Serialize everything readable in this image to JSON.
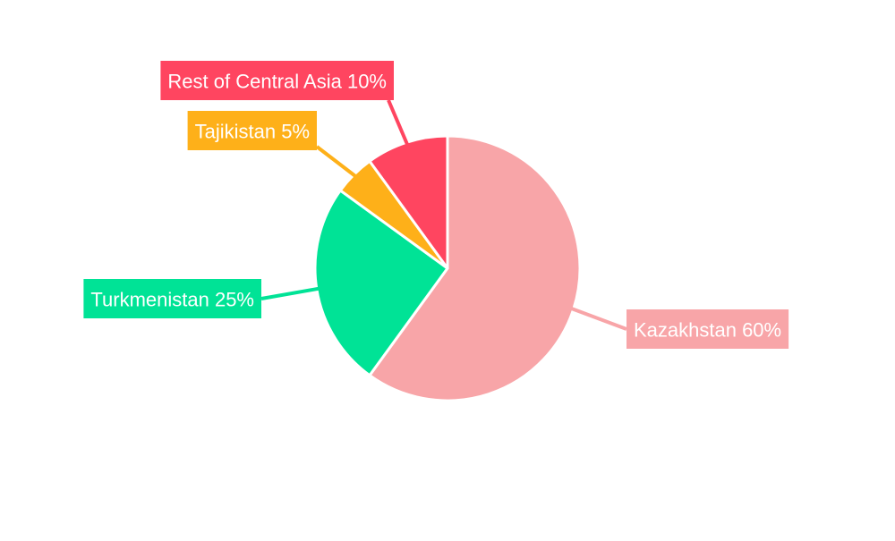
{
  "chart_data": {
    "type": "pie",
    "slices": [
      {
        "label": "Kazakhstan 60%",
        "name": "Kazakhstan",
        "value": 60,
        "color": "#f8a5a8"
      },
      {
        "label": "Turkmenistan 25%",
        "name": "Turkmenistan",
        "value": 25,
        "color": "#00e396"
      },
      {
        "label": "Tajikistan 5%",
        "name": "Tajikistan",
        "value": 5,
        "color": "#feb019"
      },
      {
        "label": "Rest of Central Asia 10%",
        "name": "Rest of Central Asia",
        "value": 10,
        "color": "#ff4560"
      }
    ],
    "label_text_color": "#ffffff",
    "slice_border_color": "#ffffff"
  }
}
